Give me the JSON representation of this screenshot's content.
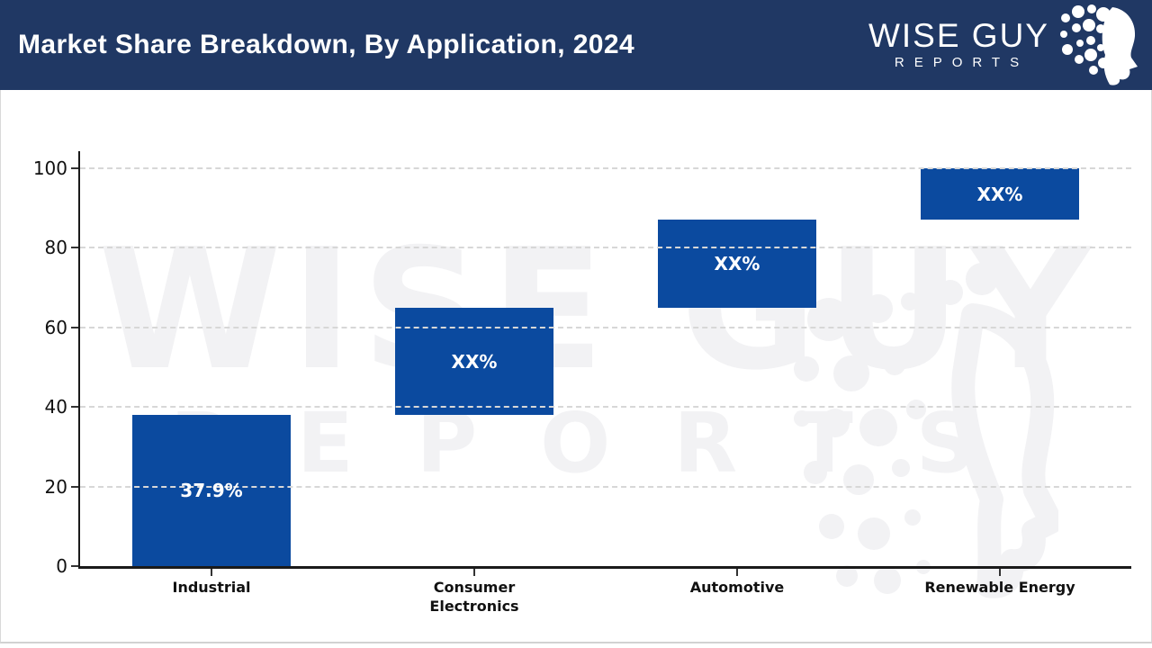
{
  "header": {
    "title": "Market Share Breakdown, By Application, 2024",
    "bg_color": "#203864",
    "logo": {
      "line1": "WISE GUY",
      "line2": "REPORTS"
    }
  },
  "watermark": {
    "line1": "WISE GUY",
    "line2": "REPORTS"
  },
  "chart_data": {
    "type": "bar",
    "subtype": "waterfall-floating-bars",
    "title": "Market Share Breakdown, By Application, 2024",
    "categories": [
      "Industrial",
      "Consumer Electronics",
      "Automotive",
      "Renewable Energy"
    ],
    "bars": [
      {
        "category": "Industrial",
        "start": 0,
        "end": 37.9,
        "label": "37.9%"
      },
      {
        "category": "Consumer Electronics",
        "start": 37.9,
        "end": 65,
        "label": "XX%"
      },
      {
        "category": "Automotive",
        "start": 65,
        "end": 87,
        "label": "XX%"
      },
      {
        "category": "Renewable Energy",
        "start": 87,
        "end": 100,
        "label": "XX%"
      }
    ],
    "yticks": [
      0,
      20,
      40,
      60,
      80,
      100
    ],
    "ylim": [
      0,
      104
    ],
    "grid": true,
    "grid_style": "dashed",
    "legend": "none",
    "bar_color": "#0b4a9f",
    "bar_label_color": "#ffffff",
    "grid_color": "#d7d7d7",
    "axis_color": "#1a1a1a",
    "watermark_color": "#f2f2f4"
  }
}
